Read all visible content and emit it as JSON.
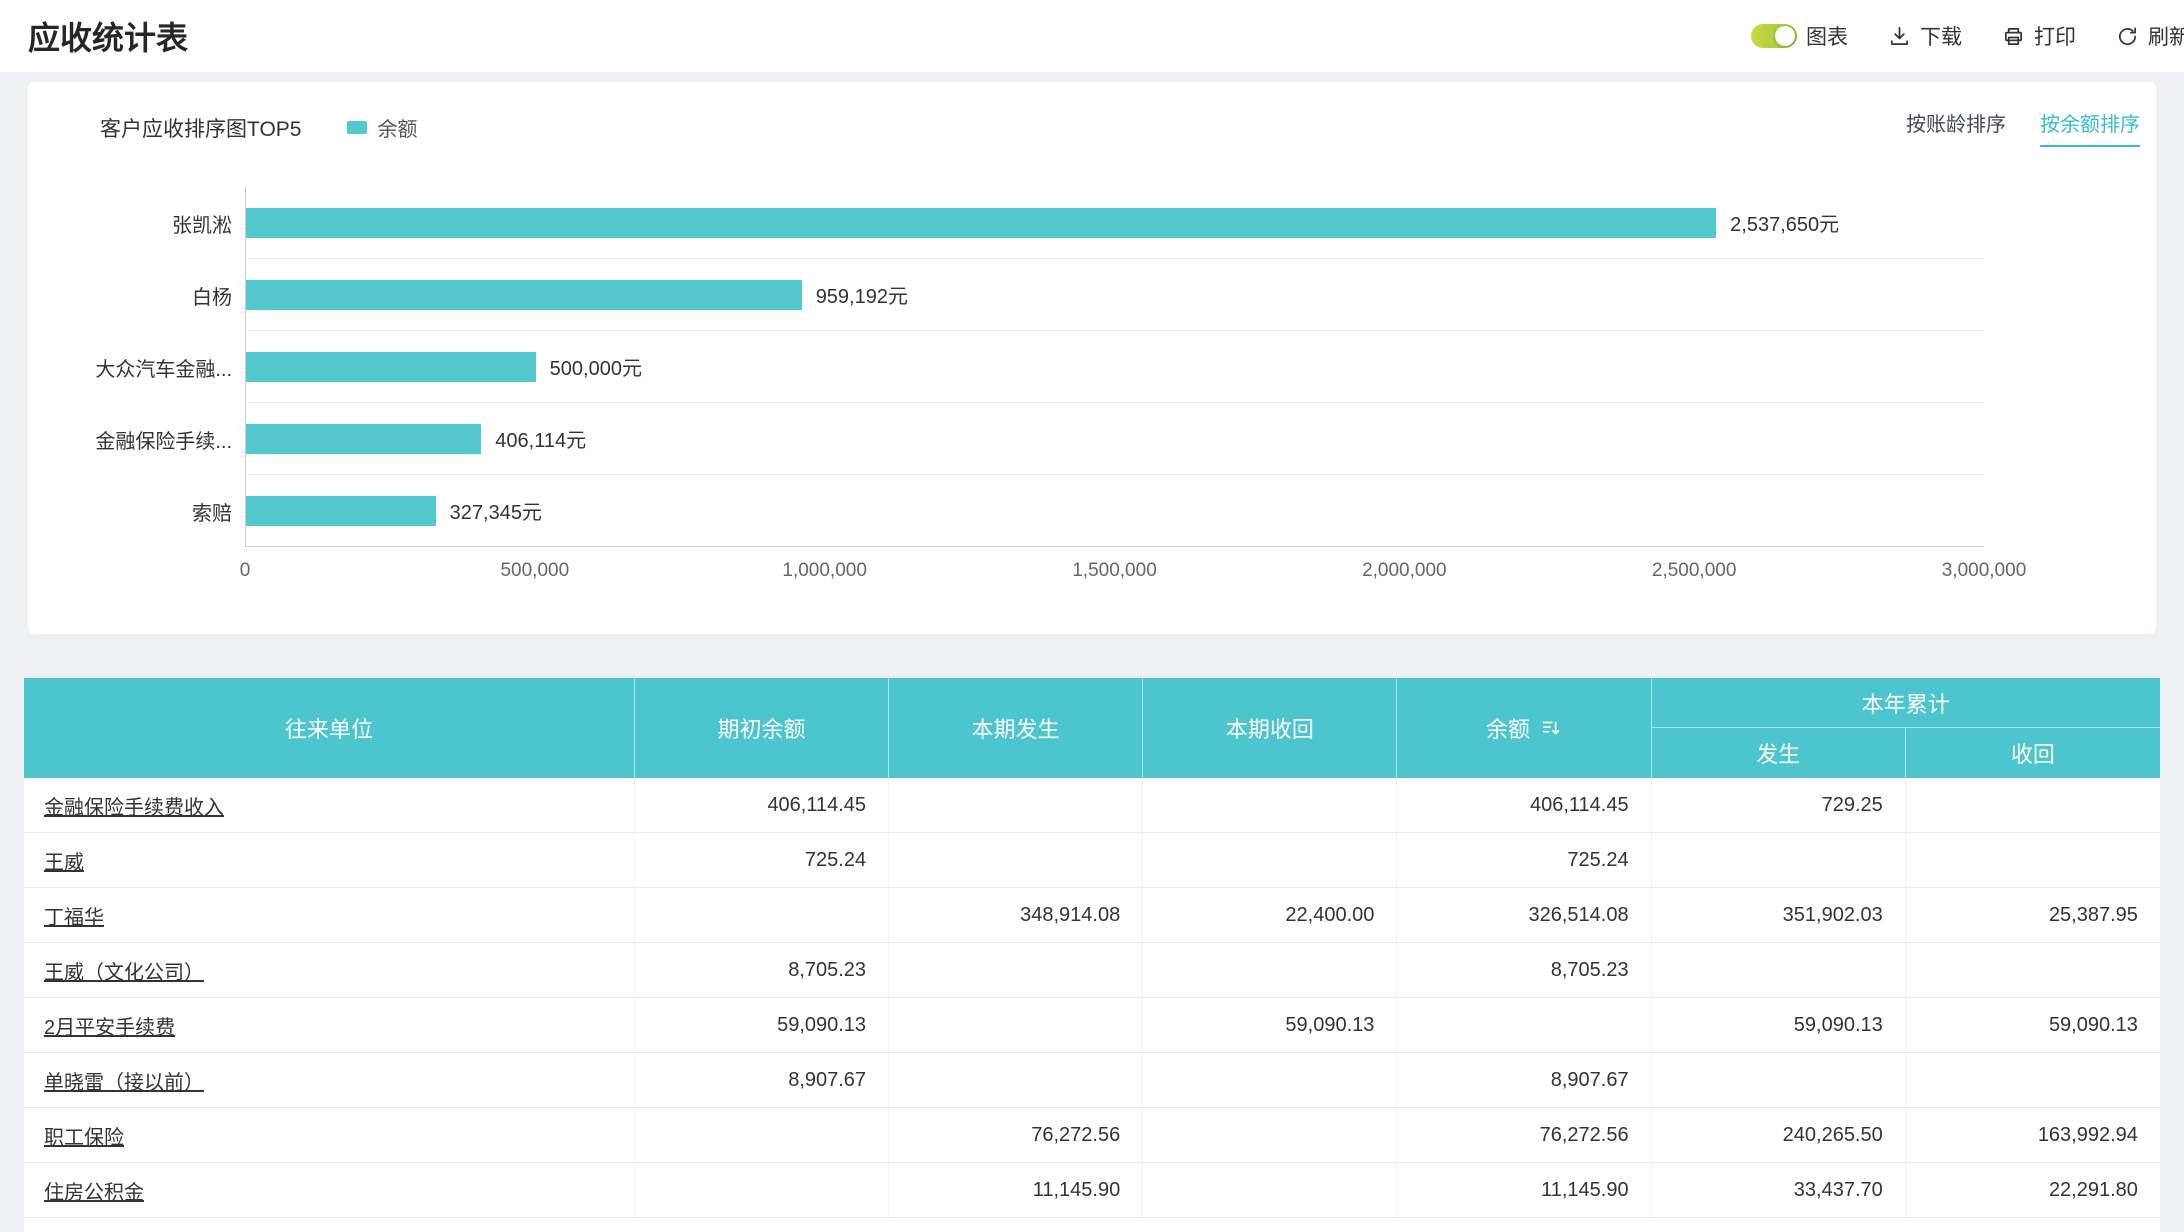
{
  "page": {
    "title": "应收统计表"
  },
  "toolbar": {
    "chart_toggle_label": "图表",
    "download_label": "下载",
    "print_label": "打印",
    "refresh_label": "刷新",
    "toggle_state": "on"
  },
  "chart_card": {
    "title": "客户应收排序图TOP5",
    "legend_label": "余额",
    "sort_tabs": [
      {
        "label": "按账龄排序",
        "active": false
      },
      {
        "label": "按余额排序",
        "active": true
      }
    ]
  },
  "chart_data": {
    "type": "bar",
    "orientation": "horizontal",
    "title": "客户应收排序图TOP5",
    "series_name": "余额",
    "categories": [
      "张凯淞",
      "白杨",
      "大众汽车金融...",
      "金融保险手续...",
      "索赔"
    ],
    "values": [
      2537650,
      959192,
      500000,
      406114,
      327345
    ],
    "value_labels": [
      "2,537,650元",
      "959,192元",
      "500,000元",
      "406,114元",
      "327,345元"
    ],
    "x_ticks": [
      "0",
      "500,000",
      "1,000,000",
      "1,500,000",
      "2,000,000",
      "2,500,000",
      "3,000,000"
    ],
    "xlim": [
      0,
      3000000
    ],
    "bar_color": "#53c9ce",
    "grid": "row-separators",
    "legend_position": "top-left"
  },
  "table": {
    "columns": [
      "往来单位",
      "期初余额",
      "本期发生",
      "本期收回",
      "余额"
    ],
    "group": {
      "label": "本年累计",
      "sub": [
        "发生",
        "收回"
      ]
    },
    "rows": [
      [
        "金融保险手续费收入",
        "406,114.45",
        "",
        "",
        "406,114.45",
        "729.25",
        ""
      ],
      [
        "王威",
        "725.24",
        "",
        "",
        "725.24",
        "",
        ""
      ],
      [
        "丁福华",
        "",
        "348,914.08",
        "22,400.00",
        "326,514.08",
        "351,902.03",
        "25,387.95"
      ],
      [
        "王威（文化公司）",
        "8,705.23",
        "",
        "",
        "8,705.23",
        "",
        ""
      ],
      [
        "2月平安手续费",
        "59,090.13",
        "",
        "59,090.13",
        "",
        "59,090.13",
        "59,090.13"
      ],
      [
        "单晓雷（接以前）",
        "8,907.67",
        "",
        "",
        "8,907.67",
        "",
        ""
      ],
      [
        "职工保险",
        "",
        "76,272.56",
        "",
        "76,272.56",
        "240,265.50",
        "163,992.94"
      ],
      [
        "住房公积金",
        "",
        "11,145.90",
        "",
        "11,145.90",
        "33,437.70",
        "22,291.80"
      ]
    ]
  },
  "colors": {
    "accent_teal": "#4cc5ce",
    "bar_teal": "#53c9ce",
    "toggle_green": "#8fc63f",
    "page_background": "#eef0f4",
    "header_text": "#ffffff"
  }
}
